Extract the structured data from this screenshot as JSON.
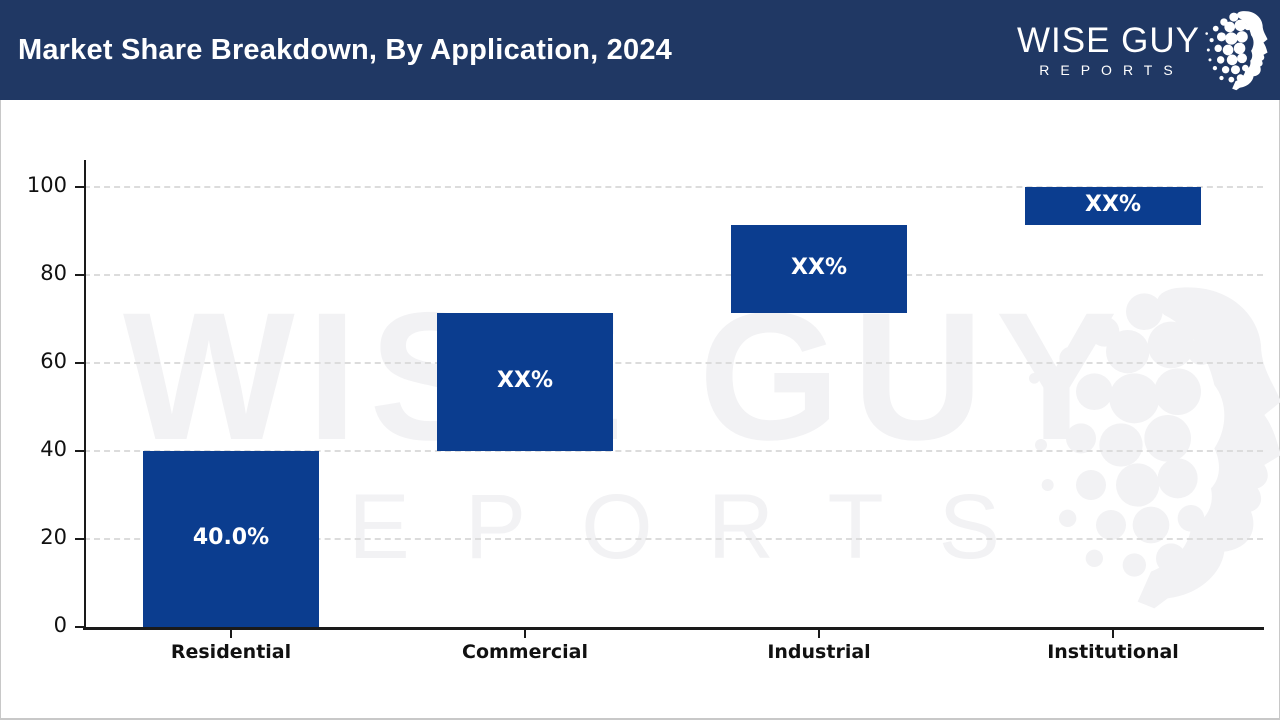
{
  "header": {
    "title": "Market Share Breakdown, By Application, 2024",
    "brand": {
      "name": "WISE GUY REPORTS",
      "line1": "WISE GUY",
      "line2": "REPORTS"
    }
  },
  "watermark": {
    "line1": "WISE GUY",
    "line2": "REPORTS"
  },
  "chart_data": {
    "type": "bar",
    "subtype": "waterfall",
    "title": "Market Share Breakdown, By Application, 2024",
    "categories": [
      "Residential",
      "Commercial",
      "Industrial",
      "Institutional"
    ],
    "segments": [
      {
        "category": "Residential",
        "label": "40.0%",
        "start": 0,
        "end": 40,
        "value": 40.0
      },
      {
        "category": "Commercial",
        "label": "XX%",
        "start": 40,
        "end": 71.4,
        "value": 31.4
      },
      {
        "category": "Industrial",
        "label": "XX%",
        "start": 71.4,
        "end": 91.4,
        "value": 20.0
      },
      {
        "category": "Institutional",
        "label": "XX%",
        "start": 91.4,
        "end": 100,
        "value": 8.6
      }
    ],
    "yticks": [
      0,
      20,
      40,
      60,
      80,
      100
    ],
    "ylim": [
      0,
      106
    ],
    "xlabel": "",
    "ylabel": "",
    "legend": null,
    "grid": "horizontal-dashed",
    "bar_color": "#0b3d8f",
    "bar_label_color": "#ffffff"
  },
  "colors": {
    "header_bg": "#203864",
    "bar": "#0b3d8f",
    "watermark": "#f2f2f4",
    "gridline": "#dcdcdc",
    "axis": "#1a1a1a",
    "page_border": "#c8c8c8"
  }
}
